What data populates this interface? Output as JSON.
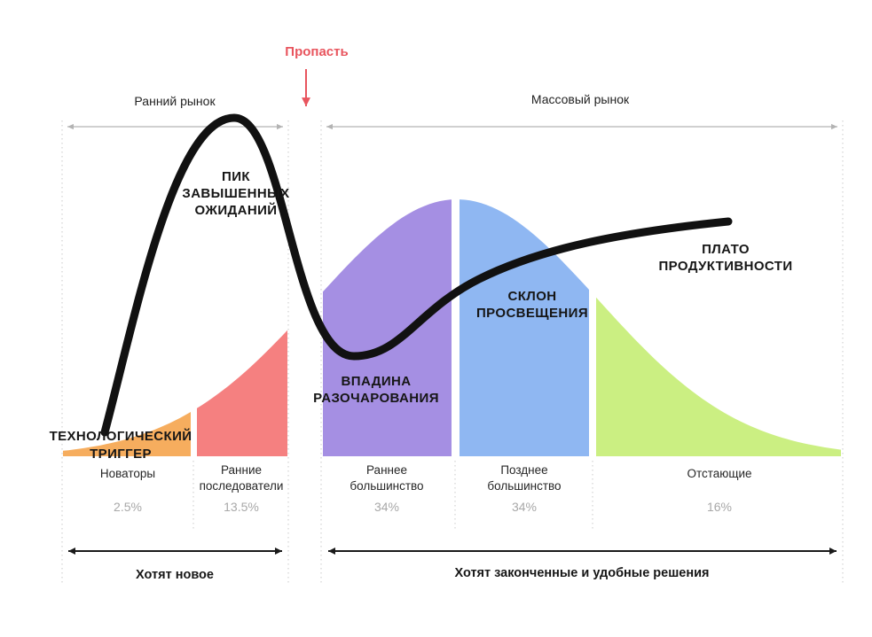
{
  "chasm": {
    "label": "Пропасть"
  },
  "markets": {
    "early_label": "Ранний рынок",
    "mass_label": "Массовый рынок"
  },
  "stages": {
    "trigger": {
      "line1": "ТЕХНОЛОГИЧЕСКИЙ",
      "line2": "ТРИГГЕР"
    },
    "peak": {
      "line1": "ПИК",
      "line2": "ЗАВЫШЕННЫХ",
      "line3": "ОЖИДАНИЙ"
    },
    "trough": {
      "line1": "ВПАДИНА",
      "line2": "РАЗОЧАРОВАНИЯ"
    },
    "slope": {
      "line1": "СКЛОН",
      "line2": "ПРОСВЕЩЕНИЯ"
    },
    "plateau": {
      "line1": "ПЛАТО",
      "line2": "ПРОДУКТИВНОСТИ"
    }
  },
  "segments": [
    {
      "id": "innovators",
      "line1": "Новаторы",
      "line2": "",
      "percent": "2.5%",
      "color": "#F6AD5E"
    },
    {
      "id": "early-adopters",
      "line1": "Ранние",
      "line2": "последователи",
      "percent": "13.5%",
      "color": "#F58080"
    },
    {
      "id": "early-majority",
      "line1": "Раннее",
      "line2": "большинство",
      "percent": "34%",
      "color": "#A58FE3"
    },
    {
      "id": "late-majority",
      "line1": "Позднее",
      "line2": "большинство",
      "percent": "34%",
      "color": "#8FB7F2"
    },
    {
      "id": "laggards",
      "line1": "Отстающие",
      "line2": "",
      "percent": "16%",
      "color": "#CBEF82"
    }
  ],
  "wants": {
    "early_label": "Хотят новое",
    "mass_label": "Хотят законченные и удобные решения"
  },
  "colors": {
    "accent_red": "#E8555E",
    "curve_black": "#111111",
    "guide_gray": "#B3B3B3",
    "arrow_dark": "#1A1A1A"
  }
}
